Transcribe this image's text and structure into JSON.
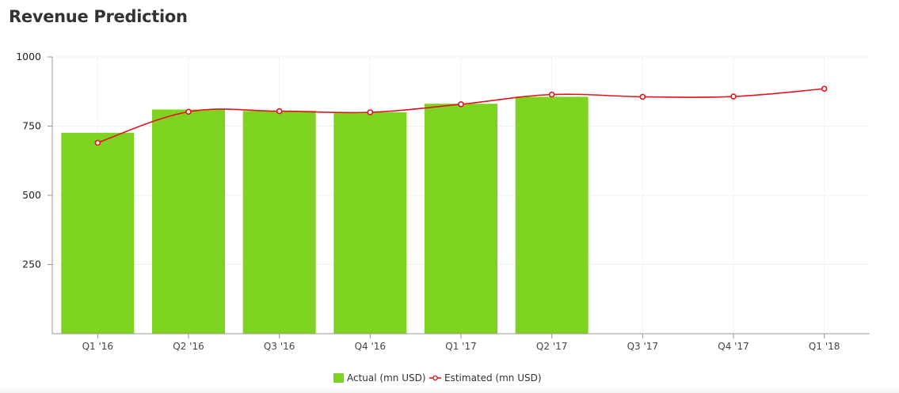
{
  "page": {
    "title": "Revenue Prediction"
  },
  "chart_data": {
    "type": "bar+line",
    "categories": [
      "Q1 '16",
      "Q2 '16",
      "Q3 '16",
      "Q4 '16",
      "Q1 '17",
      "Q2 '17",
      "Q3 '17",
      "Q4 '17",
      "Q1 '18"
    ],
    "series": [
      {
        "name": "Actual (mn USD)",
        "type": "bar",
        "color": "#7ed321",
        "values": [
          726,
          810,
          805,
          800,
          831,
          856,
          null,
          null,
          null
        ]
      },
      {
        "name": "Estimated (mn USD)",
        "type": "line",
        "color": "#e3141b",
        "values": [
          690,
          802,
          804,
          800,
          829,
          864,
          856,
          857,
          885
        ]
      }
    ],
    "yticks": [
      250,
      500,
      750,
      1000
    ],
    "ylim": [
      0,
      1000
    ],
    "grid": true,
    "legend_position": "bottom-center"
  }
}
